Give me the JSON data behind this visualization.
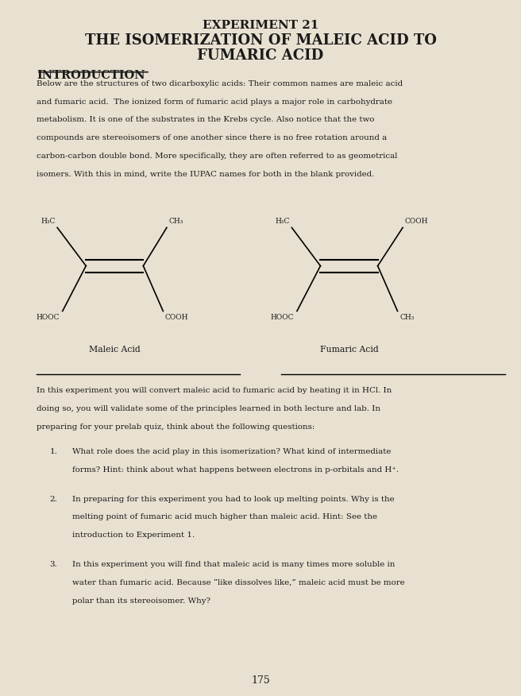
{
  "bg_color": "#e8e0d0",
  "title1": "EXPERIMENT 21",
  "title2": "THE ISOMERIZATION OF MALEIC ACID TO",
  "title3": "FUMARIC ACID",
  "section": "INTRODUCTION",
  "maleic_label": "Maleic Acid",
  "fumaric_label": "Fumaric Acid",
  "intro_lines": [
    "Below are the structures of two dicarboxylic acids: Their common names are maleic acid",
    "and fumaric acid.  The ionized form of fumaric acid plays a major role in carbohydrate",
    "metabolism. It is one of the substrates in the Krebs cycle. Also notice that the two",
    "compounds are stereoisomers of one another since there is no free rotation around a",
    "carbon-carbon double bond. More specifically, they are often referred to as geometrical",
    "isomers. With this in mind, write the IUPAC names for both in the blank provided."
  ],
  "body_lines": [
    "In this experiment you will convert maleic acid to fumaric acid by heating it in HCl. In",
    "doing so, you will validate some of the principles learned in both lecture and lab. In",
    "preparing for your prelab quiz, think about the following questions:"
  ],
  "q1_lines": [
    "What role does the acid play in this isomerization? What kind of intermediate",
    "forms? Hint: think about what happens between electrons in p-orbitals and H⁺."
  ],
  "q2_lines": [
    "In preparing for this experiment you had to look up melting points. Why is the",
    "melting point of fumaric acid much higher than maleic acid. Hint: See the",
    "introduction to Experiment 1."
  ],
  "q3_lines": [
    "In this experiment you will find that maleic acid is many times more soluble in",
    "water than fumaric acid. Because “like dissolves like,” maleic acid must be more",
    "polar than its stereoisomer. Why?"
  ],
  "page_num": "175",
  "text_color": "#1a1a1a",
  "lm": 0.07,
  "rm": 0.97
}
